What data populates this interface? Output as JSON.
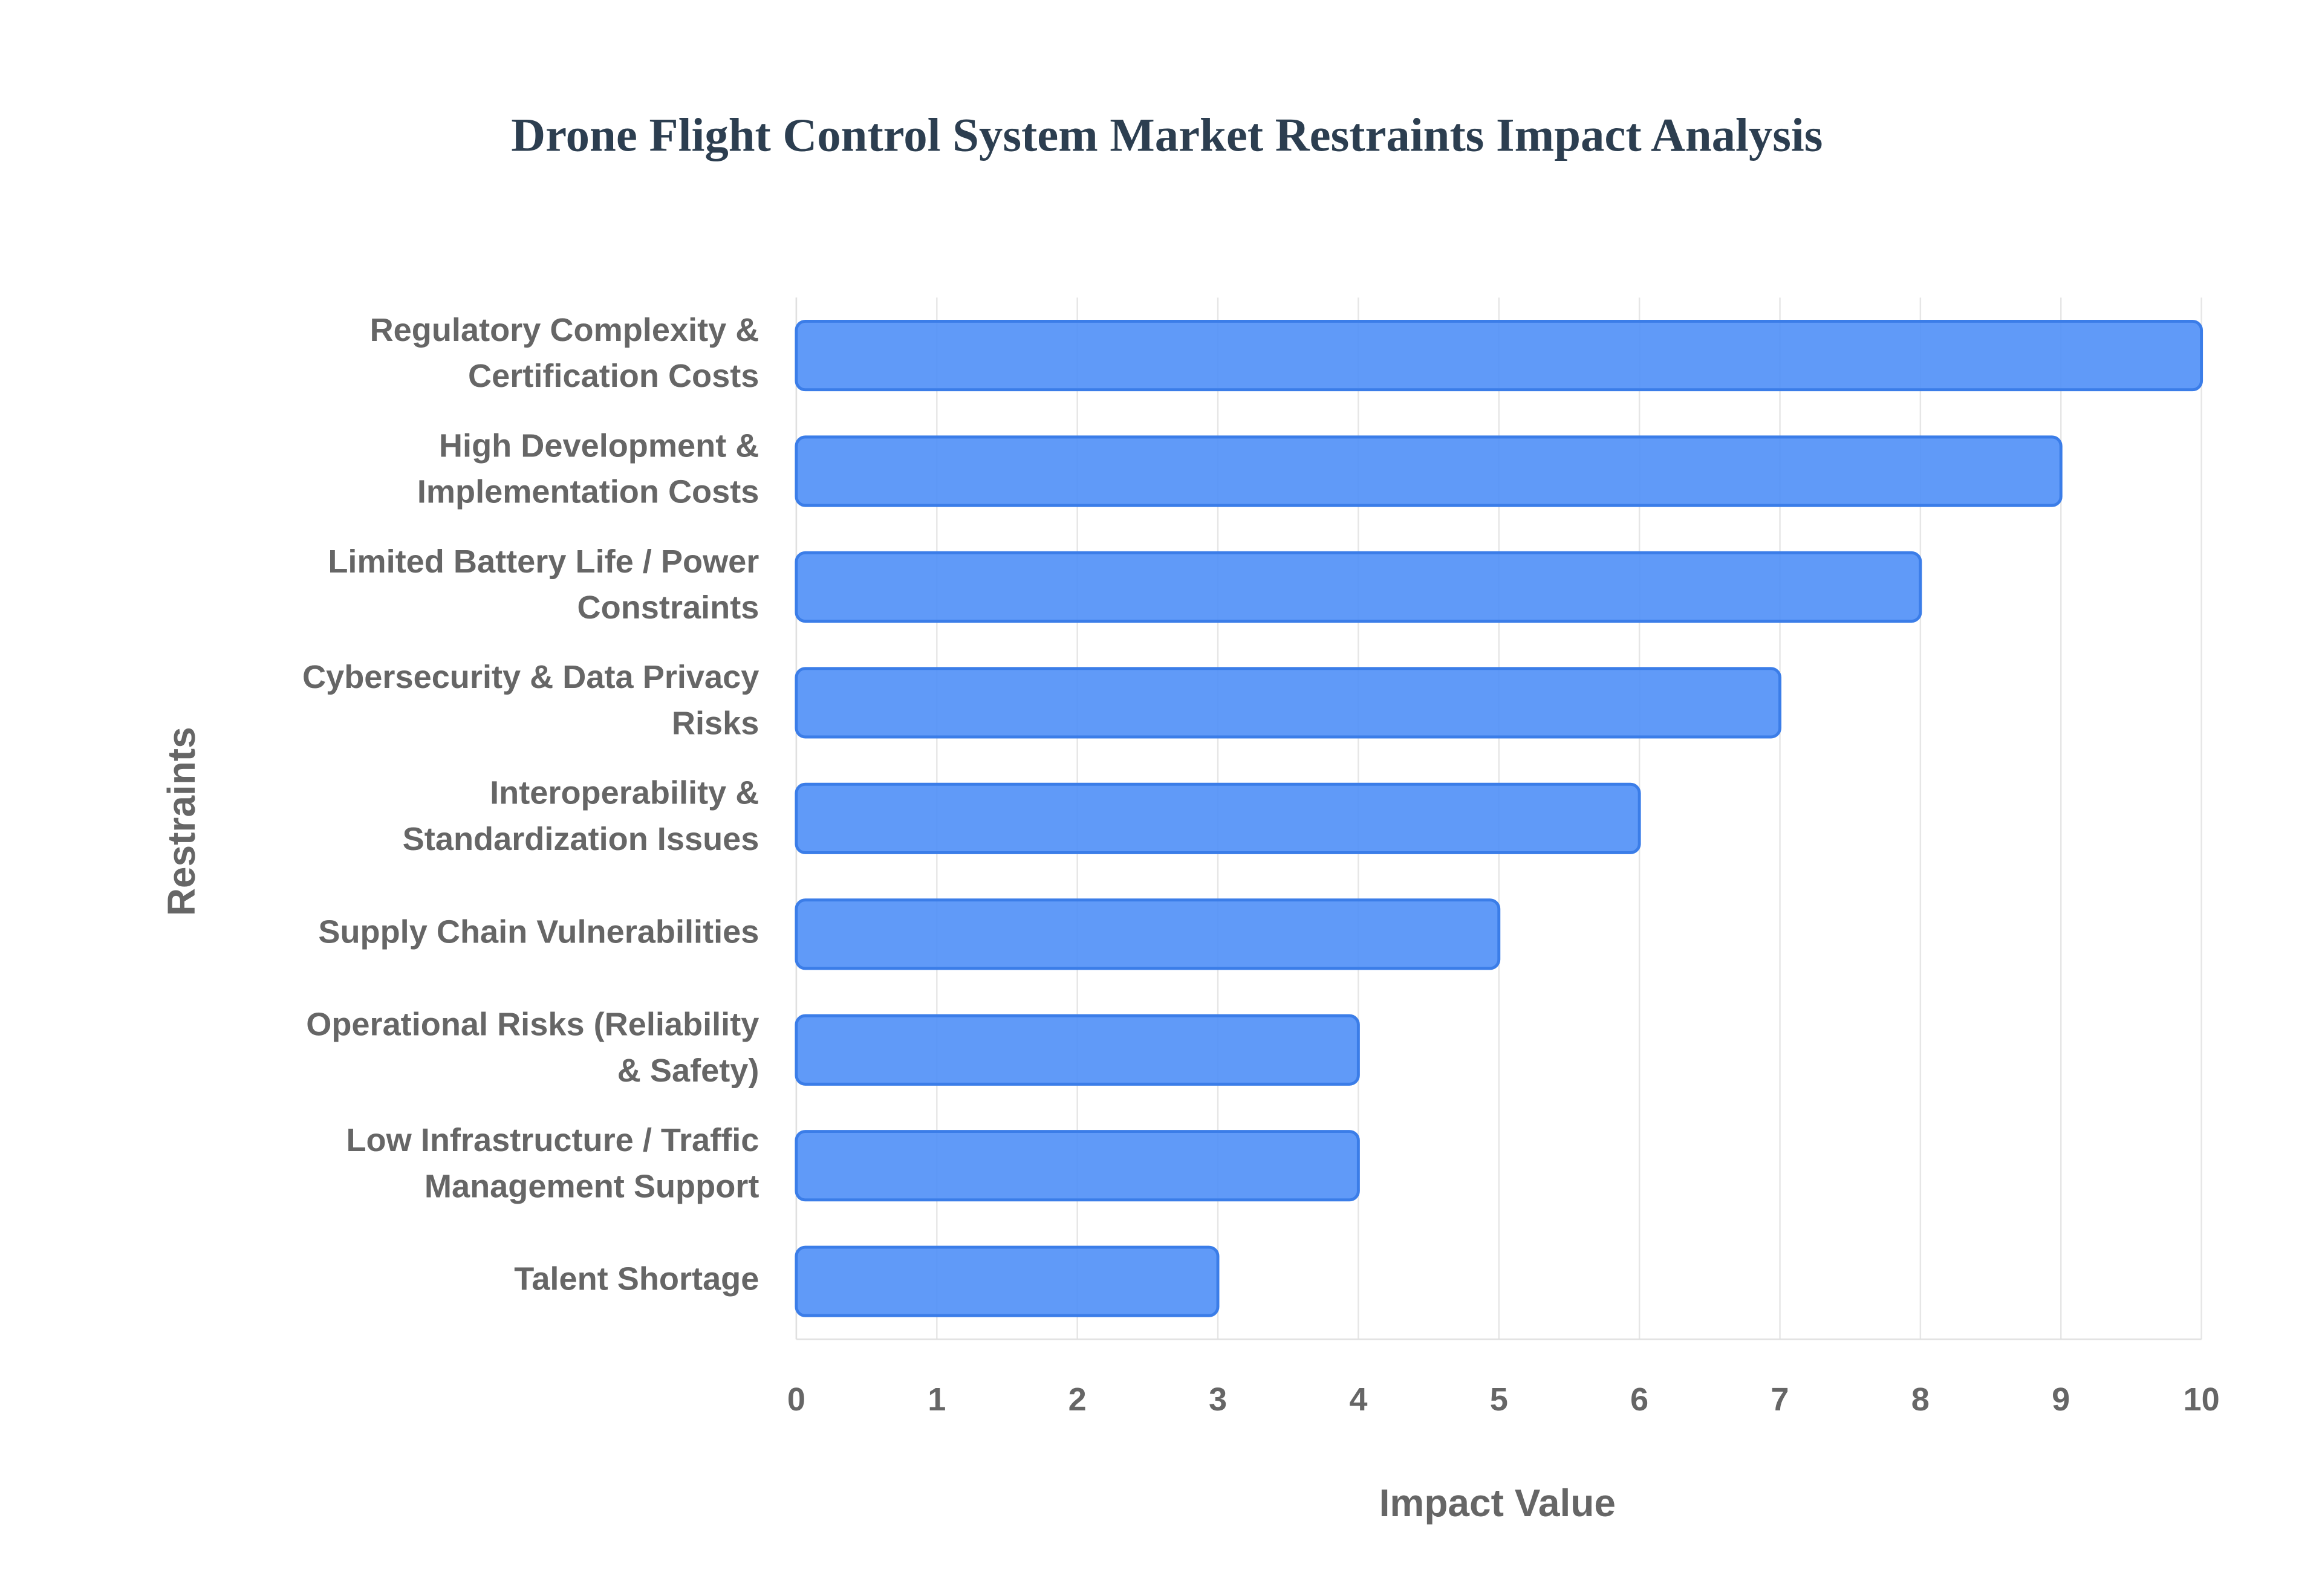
{
  "chart_data": {
    "type": "bar",
    "orientation": "horizontal",
    "title": "Drone Flight Control System Market Restraints Impact Analysis",
    "x_label": "Impact Value",
    "y_label": "Restraints",
    "categories": [
      "Regulatory Complexity & Certification Costs",
      "High Development & Implementation Costs",
      "Limited Battery Life / Power Constraints",
      "Cybersecurity & Data Privacy Risks",
      "Interoperability & Standardization Issues",
      "Supply Chain Vulnerabilities",
      "Operational Risks (Reliability & Safety)",
      "Low Infrastructure / Traffic Management Support",
      "Talent Shortage"
    ],
    "values": [
      10,
      9,
      8,
      7,
      6,
      5,
      4,
      4,
      3
    ],
    "color": "#4f8ff7",
    "xlim": [
      0,
      10
    ],
    "xticks": [
      0,
      1,
      2,
      3,
      4,
      5,
      6,
      7,
      8,
      9,
      10
    ],
    "grid": true
  }
}
